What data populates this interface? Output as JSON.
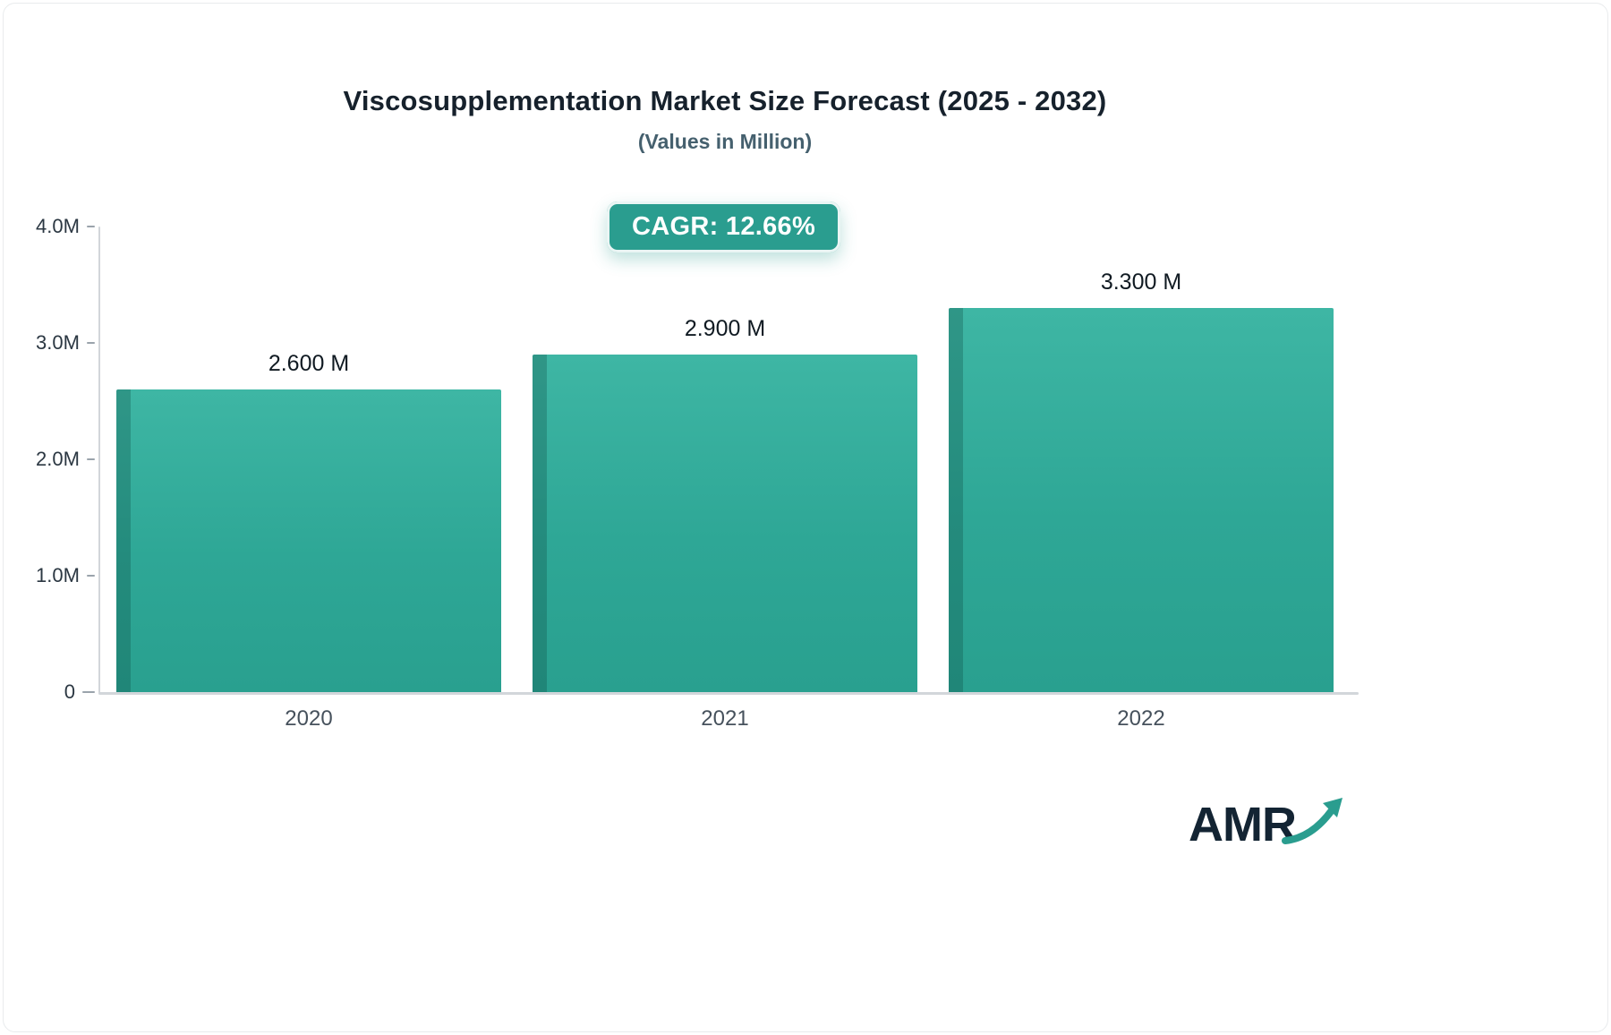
{
  "header": {
    "title": "Viscosupplementation Market Size Forecast (2025 - 2032)",
    "subtitle": "(Values in Million)"
  },
  "badge": {
    "label": "CAGR: 12.66%",
    "background": "#2a9d8f",
    "text_color": "#ffffff"
  },
  "chart_data": {
    "type": "bar",
    "title": "Viscosupplementation Market Size Forecast (2025 - 2032)",
    "subtitle": "(Values in Million)",
    "categories": [
      "2020",
      "2021",
      "2022"
    ],
    "values": [
      2.6,
      2.9,
      3.3
    ],
    "value_labels": [
      "2.600 M",
      "2.900 M",
      "3.300 M"
    ],
    "unit": "Million",
    "ylim": [
      0,
      4.0
    ],
    "y_ticks": [
      "4.0M",
      "3.0M",
      "2.0M",
      "1.0M",
      "0"
    ],
    "y_tick_values": [
      4.0,
      3.0,
      2.0,
      1.0,
      0
    ],
    "grid": false,
    "legend": "none",
    "cagr": "12.66%",
    "bar_color_top": "#3eb6a4",
    "bar_color_bottom": "#29a08f",
    "bar_edge_color": "#1e8276",
    "axis_color": "#d2d6da"
  },
  "logo": {
    "text": "AMR"
  }
}
